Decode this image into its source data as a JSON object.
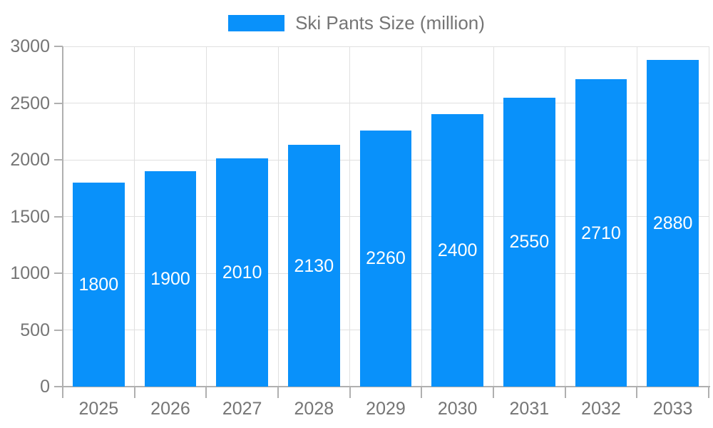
{
  "chart_data": {
    "type": "bar",
    "title": "Ski Pants Size (million)",
    "legend": {
      "label": "Ski Pants Size (million)",
      "position": "top-center"
    },
    "categories": [
      "2025",
      "2026",
      "2027",
      "2028",
      "2029",
      "2030",
      "2031",
      "2032",
      "2033"
    ],
    "series": [
      {
        "name": "Ski Pants Size (million)",
        "values": [
          1800,
          1900,
          2010,
          2130,
          2260,
          2400,
          2550,
          2710,
          2880
        ]
      }
    ],
    "data_labels": [
      "1800",
      "1900",
      "2010",
      "2130",
      "2260",
      "2400",
      "2550",
      "2710",
      "2880"
    ],
    "xlabel": "",
    "ylabel": "",
    "ylim": [
      0,
      3000
    ],
    "y_ticks": [
      0,
      500,
      1000,
      1500,
      2000,
      2500,
      3000
    ],
    "y_tick_labels": [
      "0",
      "500",
      "1000",
      "1500",
      "2000",
      "2500",
      "3000"
    ],
    "grid": true,
    "colors": {
      "bar": "#0991fa",
      "bar_value_text": "#ffffff",
      "axis_text": "#757575",
      "legend_text": "#757575",
      "gridline": "#e0e0e0",
      "axis_line": "#b0b0b0",
      "background": "#ffffff"
    }
  }
}
